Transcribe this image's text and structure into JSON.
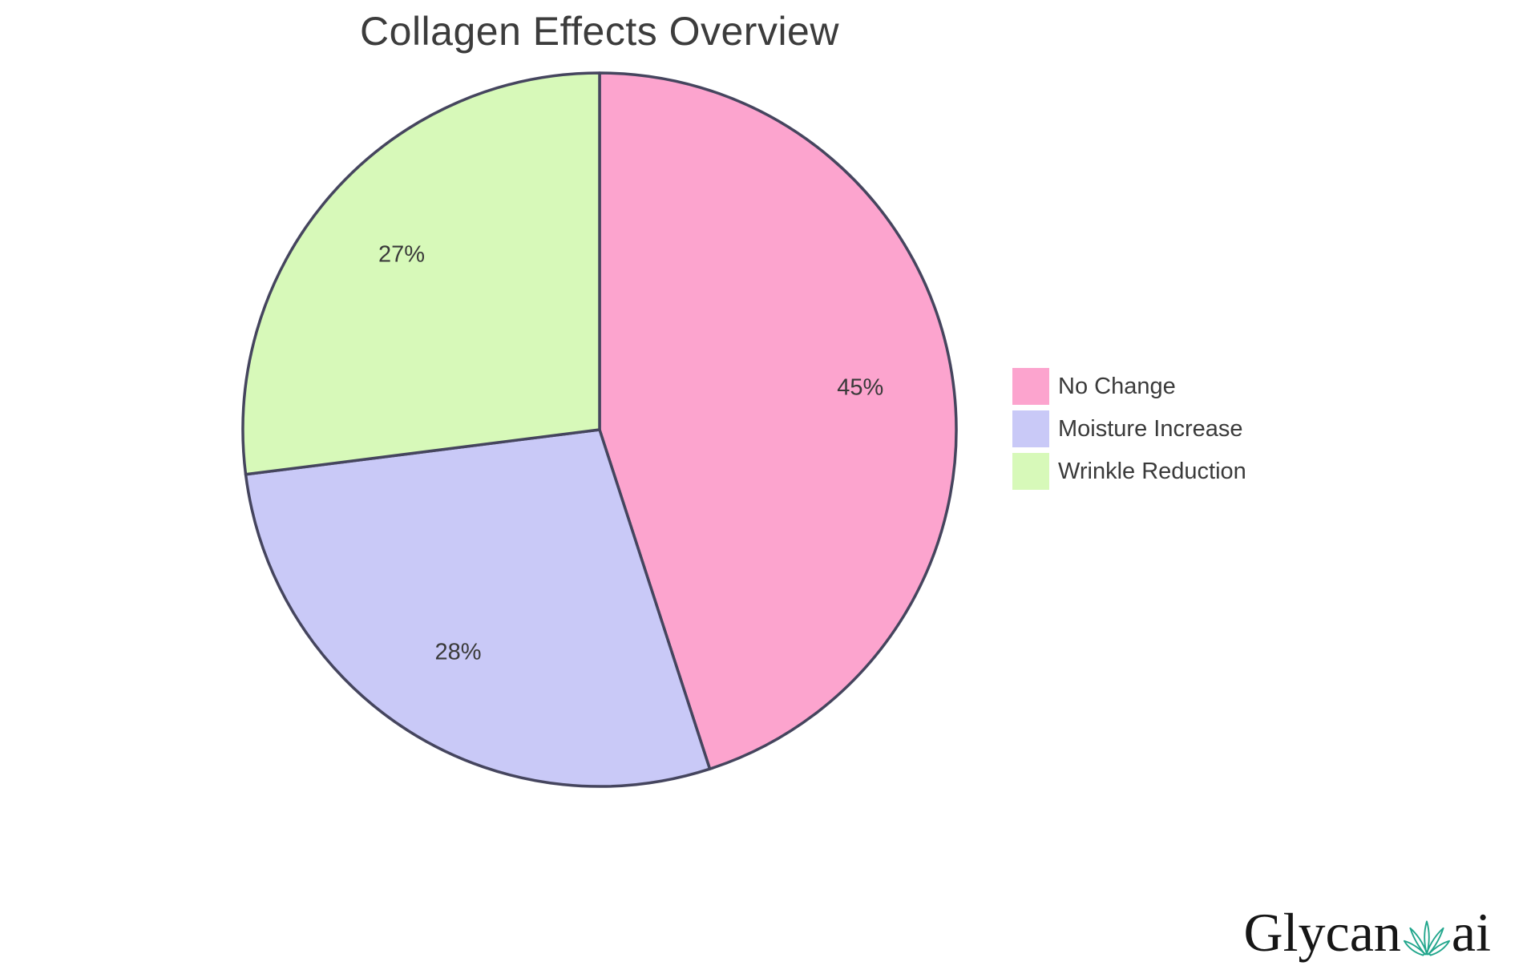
{
  "chart_data": {
    "type": "pie",
    "title": "Collagen Effects Overview",
    "series": [
      {
        "name": "No Change",
        "value": 45,
        "label": "45%",
        "color": "#FCA4CE"
      },
      {
        "name": "Moisture Increase",
        "value": 28,
        "label": "28%",
        "color": "#C9C9F7"
      },
      {
        "name": "Wrinkle Reduction",
        "value": 27,
        "label": "27%",
        "color": "#D7F9B9"
      }
    ],
    "start_angle": "12-oclock",
    "direction": "clockwise",
    "stroke_color": "#45455E",
    "label_color": "#3a3a3a",
    "title_color": "#3c3c3c",
    "legend_position": "right"
  },
  "legend": {
    "items": [
      "No Change",
      "Moisture Increase",
      "Wrinkle Reduction"
    ]
  },
  "logo": {
    "brand_left": "Glycan",
    "brand_right": "ai",
    "icon": "aloe-plant-icon",
    "icon_color": "#21A68C",
    "text_color": "#161616"
  }
}
